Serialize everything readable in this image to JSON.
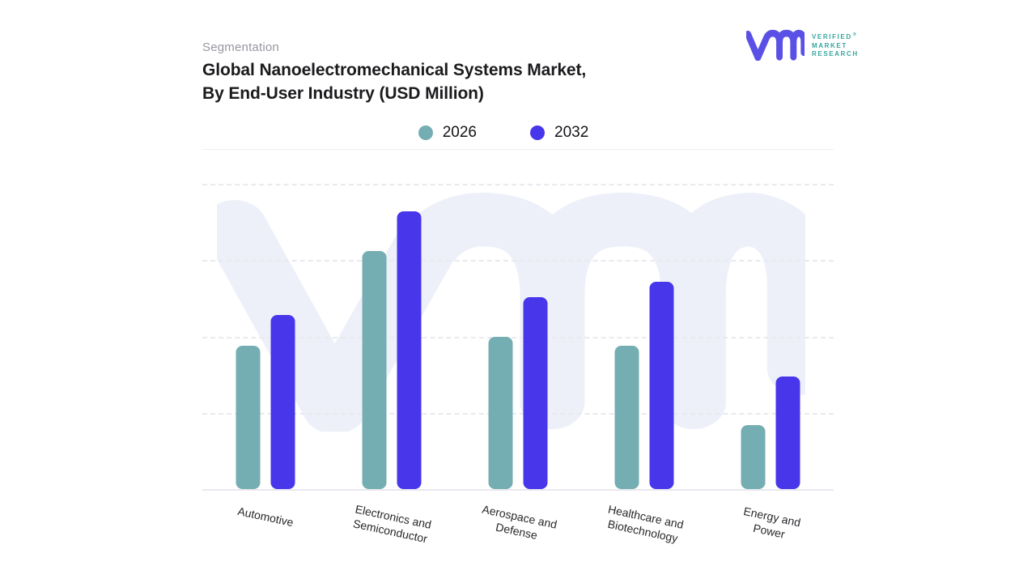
{
  "header": {
    "eyebrow": "Segmentation",
    "title": "Global Nanoelectromechanical Systems Market,\nBy End-User Industry (USD Million)"
  },
  "logo": {
    "line1": "VERIFIED",
    "registered": "®",
    "line2": "MARKET",
    "line3": "RESEARCH"
  },
  "colors": {
    "bar_2026": "#75AEB2",
    "bar_2032": "#4836EA",
    "logo_mark": "#5A50E6",
    "logo_text": "#36A59E",
    "watermark": "#EEF0F9"
  },
  "chart_data": {
    "type": "bar",
    "title": "Global Nanoelectromechanical Systems Market, By End-User Industry (USD Million)",
    "subtitle": "Segmentation",
    "categories": [
      "Automotive",
      "Electronics and\nSemiconductor",
      "Aerospace and\nDefense",
      "Healthcare and\nBiotechnology",
      "Energy and Power"
    ],
    "series": [
      {
        "name": "2026",
        "color": "#75AEB2",
        "values": [
          47,
          78,
          50,
          47,
          21
        ]
      },
      {
        "name": "2032",
        "color": "#4836EA",
        "values": [
          57,
          91,
          63,
          68,
          37
        ]
      }
    ],
    "xlabel": "",
    "ylabel": "",
    "ylim": [
      0,
      100
    ],
    "value_axis_note": "no numeric axis shown; values are relative bar heights in % of plot height",
    "grid": "4 horizontal dashed gridlines, solid baseline",
    "legend_position": "top-center"
  }
}
